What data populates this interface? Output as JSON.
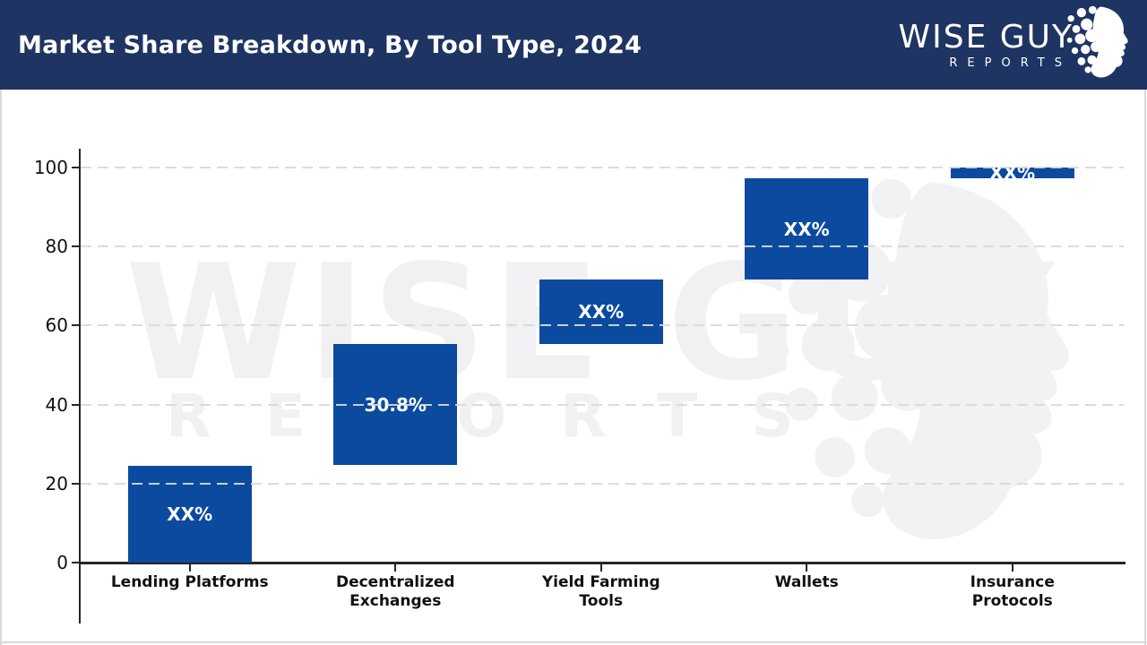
{
  "header": {
    "title": "Market Share Breakdown, By Tool Type, 2024",
    "bg_color": "#1e3462",
    "logo": {
      "line1": "WISE GUY",
      "line2": "REPORTS",
      "face_icon": "dotted-head-profile"
    }
  },
  "watermark": {
    "line1": "WISE GUY",
    "line2": "REPORTS",
    "face_icon": "dotted-head-profile"
  },
  "chart_data": {
    "type": "bar",
    "subtype": "waterfall-floating-bars",
    "title": "Market Share Breakdown, By Tool Type, 2024",
    "xlabel": "",
    "ylabel": "",
    "ylim": [
      0,
      100
    ],
    "yticks": [
      0,
      20,
      40,
      60,
      80,
      100
    ],
    "grid": "horizontal-dashed",
    "grid_color": "#d9d9d9",
    "bar_color": "#0b4a9f",
    "bar_label_color": "#ffffff",
    "categories": [
      "Lending Platforms",
      "Decentralized\nExchanges",
      "Yield Farming\nTools",
      "Wallets",
      "Insurance\nProtocols"
    ],
    "segments": [
      {
        "category": "Lending Platforms",
        "start": 0,
        "end": 24.6,
        "label": "XX%"
      },
      {
        "category": "Decentralized Exchanges",
        "start": 24.6,
        "end": 55.4,
        "label": "30.8%"
      },
      {
        "category": "Yield Farming Tools",
        "start": 55.4,
        "end": 71.6,
        "label": "XX%"
      },
      {
        "category": "Wallets",
        "start": 71.6,
        "end": 97.3,
        "label": "XX%"
      },
      {
        "category": "Insurance Protocols",
        "start": 97.3,
        "end": 100,
        "label": "XX%"
      }
    ]
  }
}
